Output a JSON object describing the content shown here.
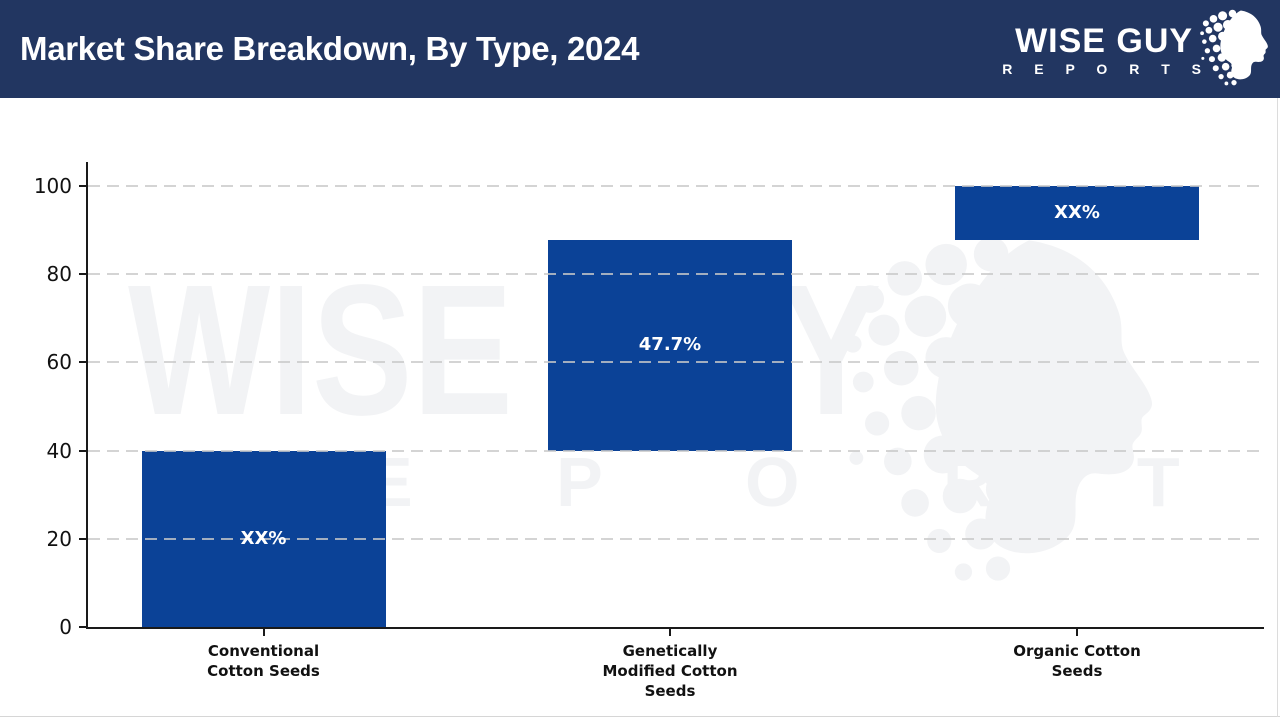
{
  "header": {
    "title": "Market Share Breakdown, By Type, 2024",
    "logo": {
      "name": "WISE GUY",
      "tagline": "R E P O R T S"
    }
  },
  "watermark": {
    "name": "WISE GUY",
    "tagline": "R E P O R T S"
  },
  "chart_data": {
    "type": "bar",
    "variant": "floating-waterfall",
    "title": "Market Share Breakdown, By Type, 2024",
    "categories": [
      "Conventional\nCotton Seeds",
      "Genetically\nModified Cotton\nSeeds",
      "Organic Cotton\nSeeds"
    ],
    "series": [
      {
        "name": "Market Share (%)",
        "segments": [
          {
            "category": "Conventional Cotton Seeds",
            "start": 0,
            "end": 40,
            "label": "XX%"
          },
          {
            "category": "Genetically Modified Cotton Seeds",
            "start": 40,
            "end": 87.7,
            "label": "47.7%"
          },
          {
            "category": "Organic Cotton Seeds",
            "start": 87.7,
            "end": 100,
            "label": "XX%"
          }
        ]
      }
    ],
    "ylim": [
      0,
      100
    ],
    "yticks": [
      0,
      20,
      40,
      60,
      80,
      100
    ],
    "xlabel": "",
    "ylabel": "",
    "grid": {
      "axis": "y",
      "style": "dashed",
      "color": "#c9c9c9"
    },
    "legend": null,
    "bar_color": "#0b4297",
    "bar_label_color": "#ffffff",
    "header_bg_color": "#223661"
  }
}
